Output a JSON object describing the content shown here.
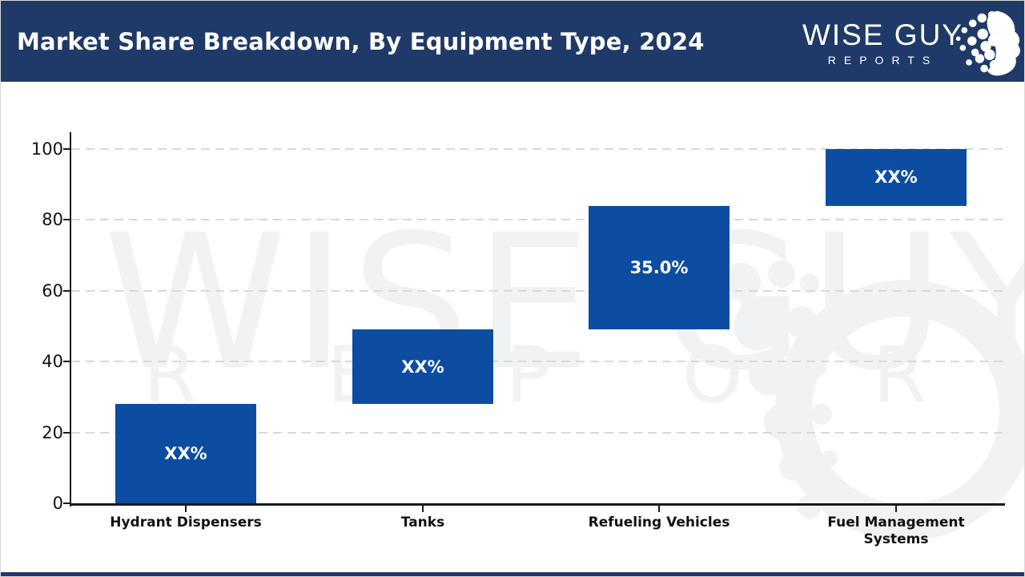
{
  "header": {
    "title": "Market Share Breakdown, By Equipment Type, 2024",
    "bg_color": "#1f3a68",
    "logo": {
      "line1": "WISE GUY",
      "line2": "REPORTS"
    }
  },
  "watermark": {
    "line1": "WISE GUY",
    "line2": "R E P O R T S"
  },
  "chart_data": {
    "type": "bar",
    "subtype": "waterfall",
    "title": "Market Share Breakdown, By Equipment Type, 2024",
    "xlabel": "",
    "ylabel": "",
    "ylim": [
      0,
      100
    ],
    "y_ticks": [
      0,
      20,
      40,
      60,
      80,
      100
    ],
    "grid": "horizontal-dashed",
    "legend": "none",
    "bar_color": "#0c4da2",
    "label_color": "#ffffff",
    "categories": [
      "Hydrant Dispensers",
      "Tanks",
      "Refueling Vehicles",
      "Fuel Management Systems"
    ],
    "segments": [
      {
        "category": "Hydrant Dispensers",
        "start": 0,
        "end": 28,
        "value": 28,
        "label": "XX%"
      },
      {
        "category": "Tanks",
        "start": 28,
        "end": 49,
        "value": 21,
        "label": "XX%"
      },
      {
        "category": "Refueling Vehicles",
        "start": 49,
        "end": 84,
        "value": 35,
        "label": "35.0%"
      },
      {
        "category": "Fuel Management Systems",
        "start": 84,
        "end": 100,
        "value": 16,
        "label": "XX%"
      }
    ]
  }
}
